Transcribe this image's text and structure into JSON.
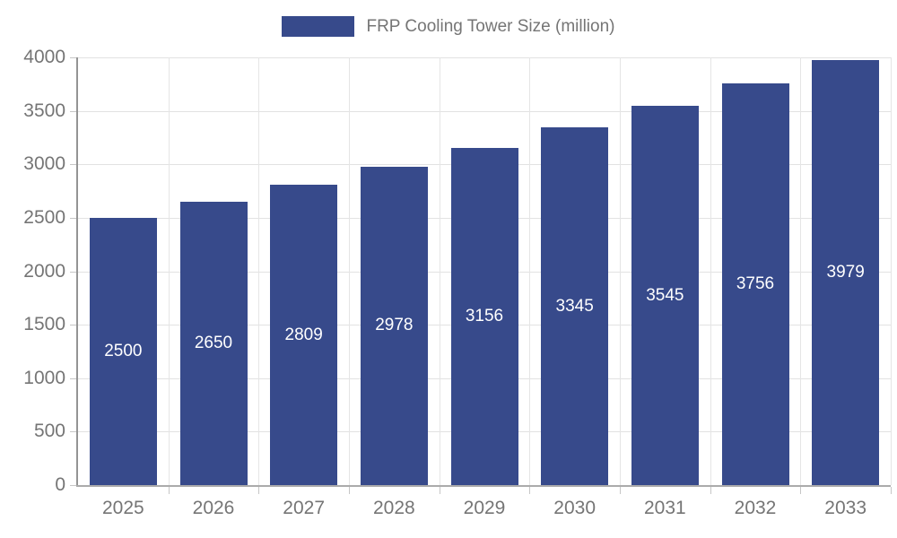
{
  "colors": {
    "bar": "#374a8b",
    "axis_text": "#757575",
    "value_label": "#ffffff",
    "grid": "#e2e2e2",
    "axis_line": "#9a9a9a"
  },
  "chart_data": {
    "type": "bar",
    "title": "FRP Cooling Tower Size (million)",
    "legend": [
      "FRP Cooling Tower Size (million)"
    ],
    "legend_position": "top-center",
    "categories": [
      "2025",
      "2026",
      "2027",
      "2028",
      "2029",
      "2030",
      "2031",
      "2032",
      "2033"
    ],
    "values": [
      2500,
      2650,
      2809,
      2978,
      3156,
      3345,
      3545,
      3756,
      3979
    ],
    "bar_value_labels": [
      "2500",
      "2650",
      "2809",
      "2978",
      "3156",
      "3345",
      "3545",
      "3756",
      "3979"
    ],
    "bar_label_position": "inside-center",
    "xlabel": "",
    "ylabel": "",
    "ylim": [
      0,
      4000
    ],
    "yticks": [
      0,
      500,
      1000,
      1500,
      2000,
      2500,
      3000,
      3500,
      4000
    ],
    "grid": true
  }
}
